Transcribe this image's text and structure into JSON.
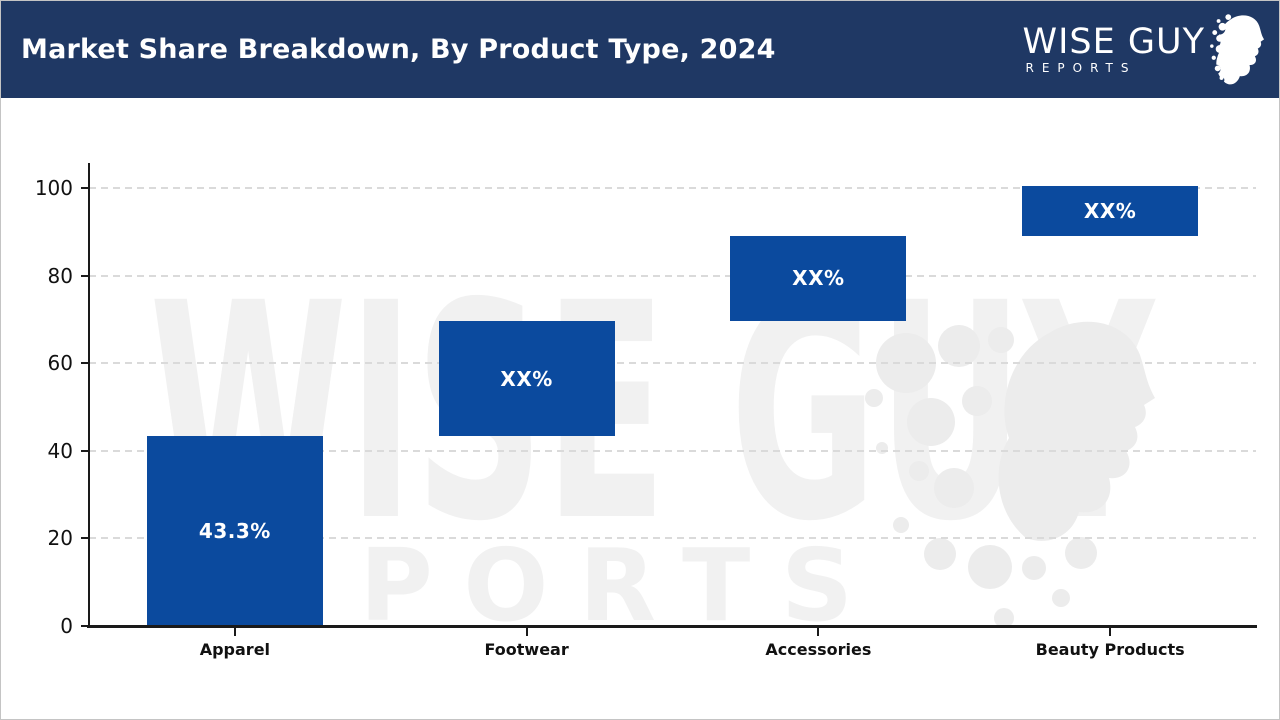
{
  "header": {
    "title": "Market Share Breakdown, By Product Type, 2024",
    "logo": {
      "name": "WISE GUY",
      "sub": "REPORTS"
    }
  },
  "watermark": {
    "line1": "WISE GUY",
    "line2": "REPORTS"
  },
  "chart_data": {
    "type": "bar",
    "subtype": "waterfall",
    "title": "Market Share Breakdown, By Product Type, 2024",
    "categories": [
      "Apparel",
      "Footwear",
      "Accessories",
      "Beauty Products"
    ],
    "segments": [
      {
        "category": "Apparel",
        "start": 0,
        "end": 43.3,
        "label": "43.3%"
      },
      {
        "category": "Footwear",
        "start": 43.3,
        "end": 69.6,
        "label": "XX%"
      },
      {
        "category": "Accessories",
        "start": 69.6,
        "end": 89.1,
        "label": "XX%"
      },
      {
        "category": "Beauty Products",
        "start": 89.1,
        "end": 100.4,
        "label": "XX%"
      }
    ],
    "y_ticks": [
      0,
      20,
      40,
      60,
      80,
      100
    ],
    "ylim": [
      0,
      106
    ],
    "grid": true,
    "legend": false,
    "bar_color": "#0b4a9e"
  },
  "colors": {
    "header_bg": "#1f3864",
    "bar": "#0b4a9e",
    "bar_label": "#ffffff",
    "grid": "#dadada",
    "axis": "#1a1a1a",
    "text": "#111111",
    "watermark": "#f1f1f1"
  }
}
